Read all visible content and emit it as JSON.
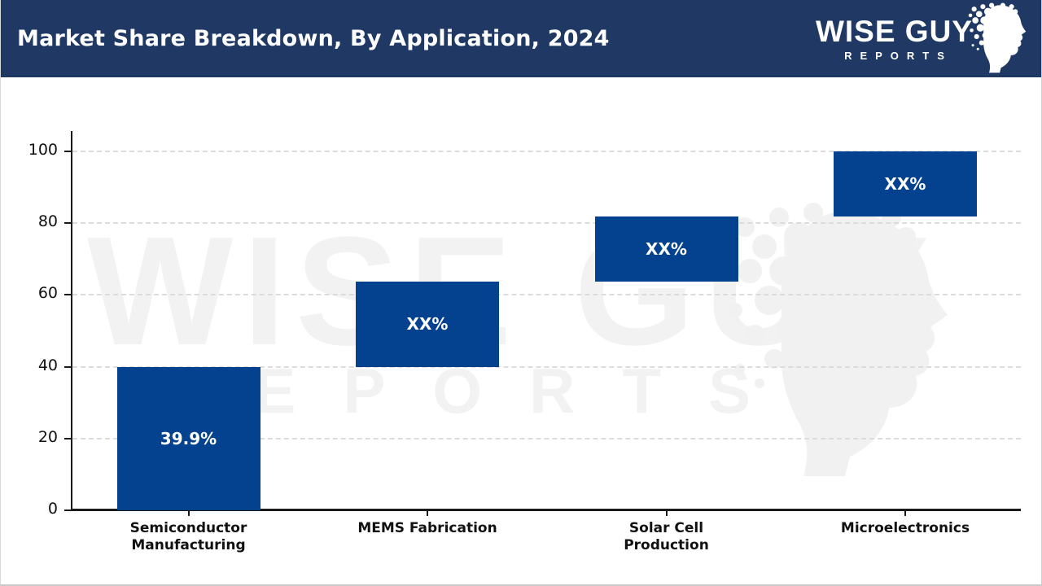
{
  "header": {
    "title": "Market Share Breakdown, By Application, 2024",
    "logo": {
      "name": "WISE GUY",
      "sub": "REPORTS"
    }
  },
  "watermark": {
    "line1": "WISE GUY",
    "line2": "REPORTS"
  },
  "chart_data": {
    "type": "bar",
    "subtype": "waterfall",
    "title": "Market Share Breakdown, By Application, 2024",
    "categories": [
      "Semiconductor\nManufacturing",
      "MEMS Fabrication",
      "Solar Cell\nProduction",
      "Microelectronics"
    ],
    "series": [
      {
        "name": "Market Share (%)",
        "segments": [
          {
            "category": "Semiconductor Manufacturing",
            "start": 0,
            "end": 39.9,
            "label": "39.9%"
          },
          {
            "category": "MEMS Fabrication",
            "start": 40,
            "end": 63.7,
            "label": "XX%"
          },
          {
            "category": "Solar Cell Production",
            "start": 63.7,
            "end": 81.8,
            "label": "XX%"
          },
          {
            "category": "Microelectronics",
            "start": 81.8,
            "end": 100,
            "label": "XX%"
          }
        ]
      }
    ],
    "xlabel": "",
    "ylabel": "",
    "ylim": [
      0,
      100
    ],
    "yticks": [
      0,
      20,
      40,
      60,
      80,
      100
    ],
    "grid": "horizontal-dashed",
    "legend": "none",
    "bar_color": "#04418f",
    "bar_label_color": "#ffffff",
    "header_color": "#1f3864"
  }
}
